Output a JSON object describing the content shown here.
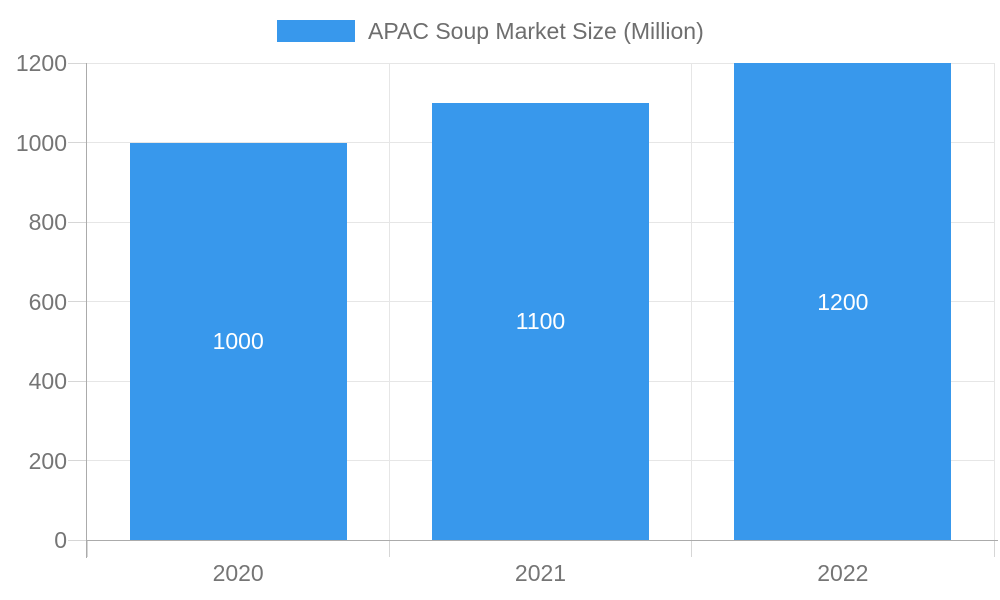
{
  "chart_data": {
    "type": "bar",
    "categories": [
      "2020",
      "2021",
      "2022"
    ],
    "series": [
      {
        "name": "APAC Soup Market Size (Million)",
        "values": [
          1000,
          1100,
          1200
        ]
      }
    ],
    "bar_labels": [
      "1000",
      "1100",
      "1200"
    ],
    "legend": {
      "position": "top",
      "label": "APAC Soup Market Size (Million)"
    },
    "title": "",
    "xlabel": "",
    "ylabel": "",
    "ylim": [
      0,
      1200
    ],
    "yticks": [
      0,
      200,
      400,
      600,
      800,
      1000,
      1200
    ],
    "grid": true,
    "colors": {
      "bar": "#3898ec",
      "bar_label_text": "#ffffff",
      "axis_text": "#757575",
      "legend_text": "#6e6e6e",
      "gridline": "#e6e6e6",
      "axis_line": "#ababab",
      "tick": "#d6d6d6",
      "background": "#ffffff"
    }
  }
}
